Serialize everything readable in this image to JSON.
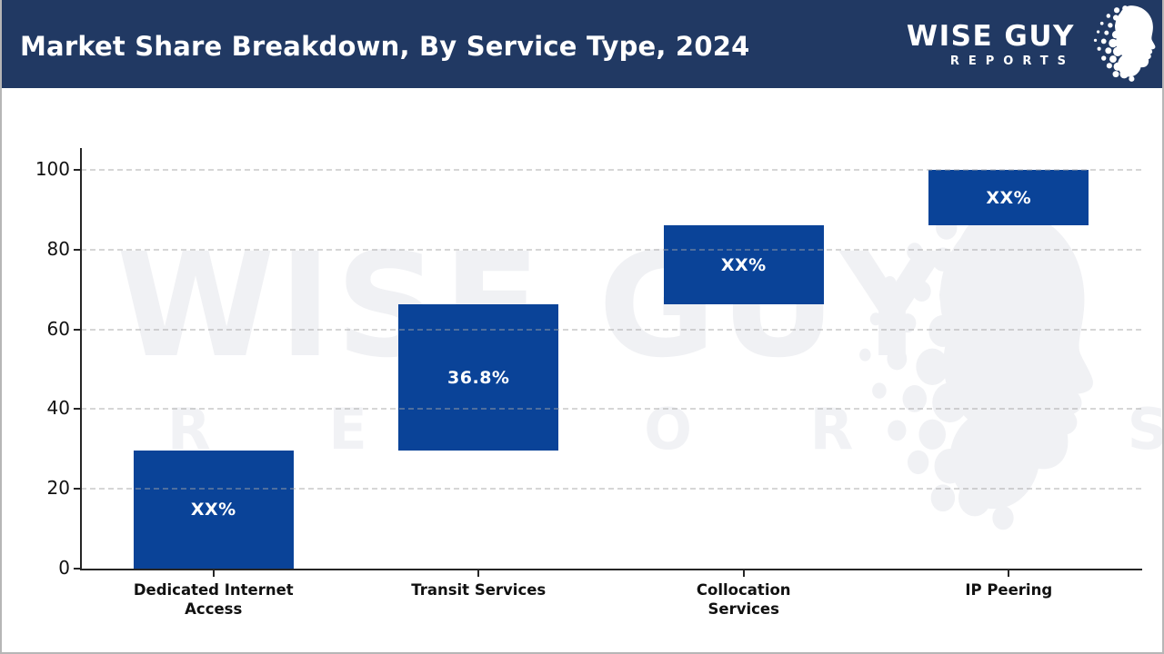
{
  "page": {
    "background": "#ffffff",
    "border_color": "#b6b6b6"
  },
  "header": {
    "background": "#213963",
    "title": "Market Share Breakdown, By Service Type, 2024",
    "logo": {
      "line1": "WISE GUY",
      "line2": "REPORTS"
    }
  },
  "watermark": {
    "line1": "WISE GUY",
    "line2": "R E P O R T S",
    "color": "#f0f1f4"
  },
  "chart_data": {
    "type": "bar",
    "subtype": "floating-waterfall",
    "title": "Market Share Breakdown, By Service Type, 2024",
    "categories": [
      "Dedicated Internet\nAccess",
      "Transit Services",
      "Collocation\nServices",
      "IP Peering"
    ],
    "bars": [
      {
        "category": "Dedicated Internet Access",
        "from": 0,
        "to": 29.5,
        "label": "XX%"
      },
      {
        "category": "Transit Services",
        "from": 29.5,
        "to": 66.3,
        "label": "36.8%"
      },
      {
        "category": "Collocation Services",
        "from": 66.3,
        "to": 86,
        "label": "XX%"
      },
      {
        "category": "IP Peering",
        "from": 86,
        "to": 100,
        "label": "XX%"
      }
    ],
    "xlabel": "",
    "ylabel": "",
    "ylim": [
      0,
      100
    ],
    "yticks": [
      0,
      20,
      40,
      60,
      80,
      100
    ],
    "grid": "horizontal-dashed",
    "legend": null,
    "colors": {
      "bar": "#0a4398",
      "bar_label": "#ffffff",
      "axis": "#262626",
      "grid": "#d0d0d0",
      "tick_label": "#111111"
    }
  }
}
